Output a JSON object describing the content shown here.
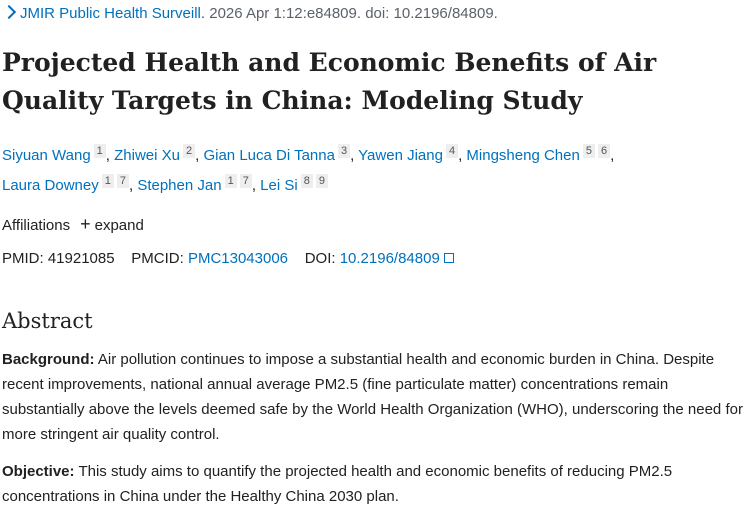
{
  "citation": {
    "journal": "JMIR Public Health Surveill.",
    "details": "2026 Apr 1:12:e84809. doi: 10.2196/84809."
  },
  "title": "Projected Health and Economic Benefits of Air Quality Targets in China: Modeling Study",
  "authors": [
    {
      "name": "Siyuan Wang",
      "affiliations": [
        "1"
      ]
    },
    {
      "name": "Zhiwei Xu",
      "affiliations": [
        "2"
      ]
    },
    {
      "name": "Gian Luca Di Tanna",
      "affiliations": [
        "3"
      ]
    },
    {
      "name": "Yawen Jiang",
      "affiliations": [
        "4"
      ]
    },
    {
      "name": "Mingsheng Chen",
      "affiliations": [
        "5",
        "6"
      ]
    },
    {
      "name": "Laura Downey",
      "affiliations": [
        "1",
        "7"
      ]
    },
    {
      "name": "Stephen Jan",
      "affiliations": [
        "1",
        "7"
      ]
    },
    {
      "name": "Lei Si",
      "affiliations": [
        "8",
        "9"
      ]
    }
  ],
  "affiliations": {
    "label": "Affiliations",
    "toggle": "expand"
  },
  "ids": {
    "pmid_label": "PMID:",
    "pmid": "41921085",
    "pmcid_label": "PMCID:",
    "pmcid": "PMC13043006",
    "doi_label": "DOI:",
    "doi": "10.2196/84809"
  },
  "abstract": {
    "heading": "Abstract",
    "sections": [
      {
        "label": "Background:",
        "text": "Air pollution continues to impose a substantial health and economic burden in China. Despite recent improvements, national annual average PM2.5 (fine particulate matter) concentrations remain substantially above the levels deemed safe by the World Health Organization (WHO), underscoring the need for more stringent air quality control."
      },
      {
        "label": "Objective:",
        "text": "This study aims to quantify the projected health and economic benefits of reducing PM2.5 concentrations in China under the Healthy China 2030 plan."
      }
    ]
  }
}
